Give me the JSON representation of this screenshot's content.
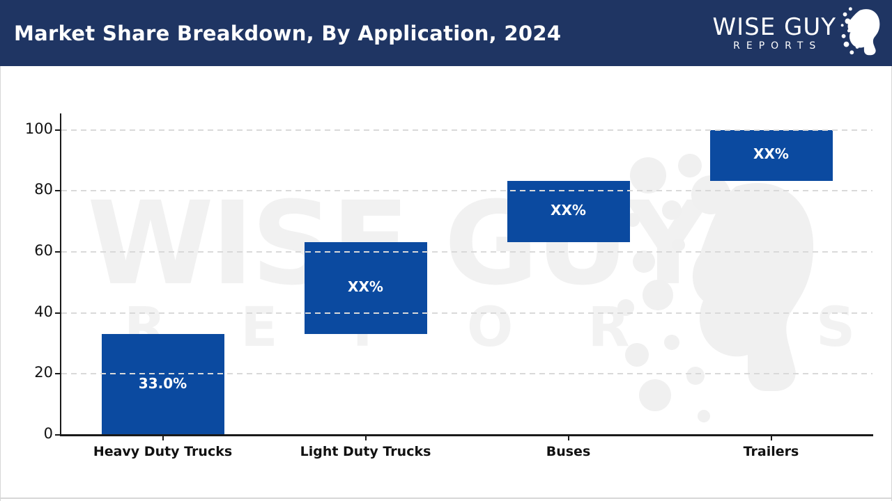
{
  "header": {
    "title": "Market Share Breakdown, By Application, 2024",
    "bg_color": "#1f3563",
    "logo": {
      "line1": "WISE GUY",
      "line2": "REPORTS"
    }
  },
  "watermark": {
    "line1": "WISE GUY",
    "line2": "R E P O R T S"
  },
  "chart_data": {
    "type": "bar",
    "subtype": "waterfall-floating-bars",
    "title": "Market Share Breakdown, By Application, 2024",
    "categories": [
      "Heavy Duty Trucks",
      "Light Duty Trucks",
      "Buses",
      "Trailers"
    ],
    "segments": [
      {
        "category": "Heavy Duty Trucks",
        "start": 0,
        "end": 33,
        "label": "33.0%"
      },
      {
        "category": "Light Duty Trucks",
        "start": 33,
        "end": 63.2,
        "label": "XX%"
      },
      {
        "category": "Buses",
        "start": 63.2,
        "end": 83.3,
        "label": "XX%"
      },
      {
        "category": "Trailers",
        "start": 83.3,
        "end": 100,
        "label": "XX%"
      }
    ],
    "y_ticks": [
      0,
      20,
      40,
      60,
      80,
      100
    ],
    "ylim": [
      0,
      100
    ],
    "xlabel": "",
    "ylabel": "",
    "grid": "horizontal-dashed",
    "legend": "none",
    "bar_color": "#0b4aa0",
    "grid_color": "#d9d9d9",
    "bar_label_color": "#ffffff",
    "axis_color": "#1a1a1a",
    "tick_label_color": "#111111"
  }
}
